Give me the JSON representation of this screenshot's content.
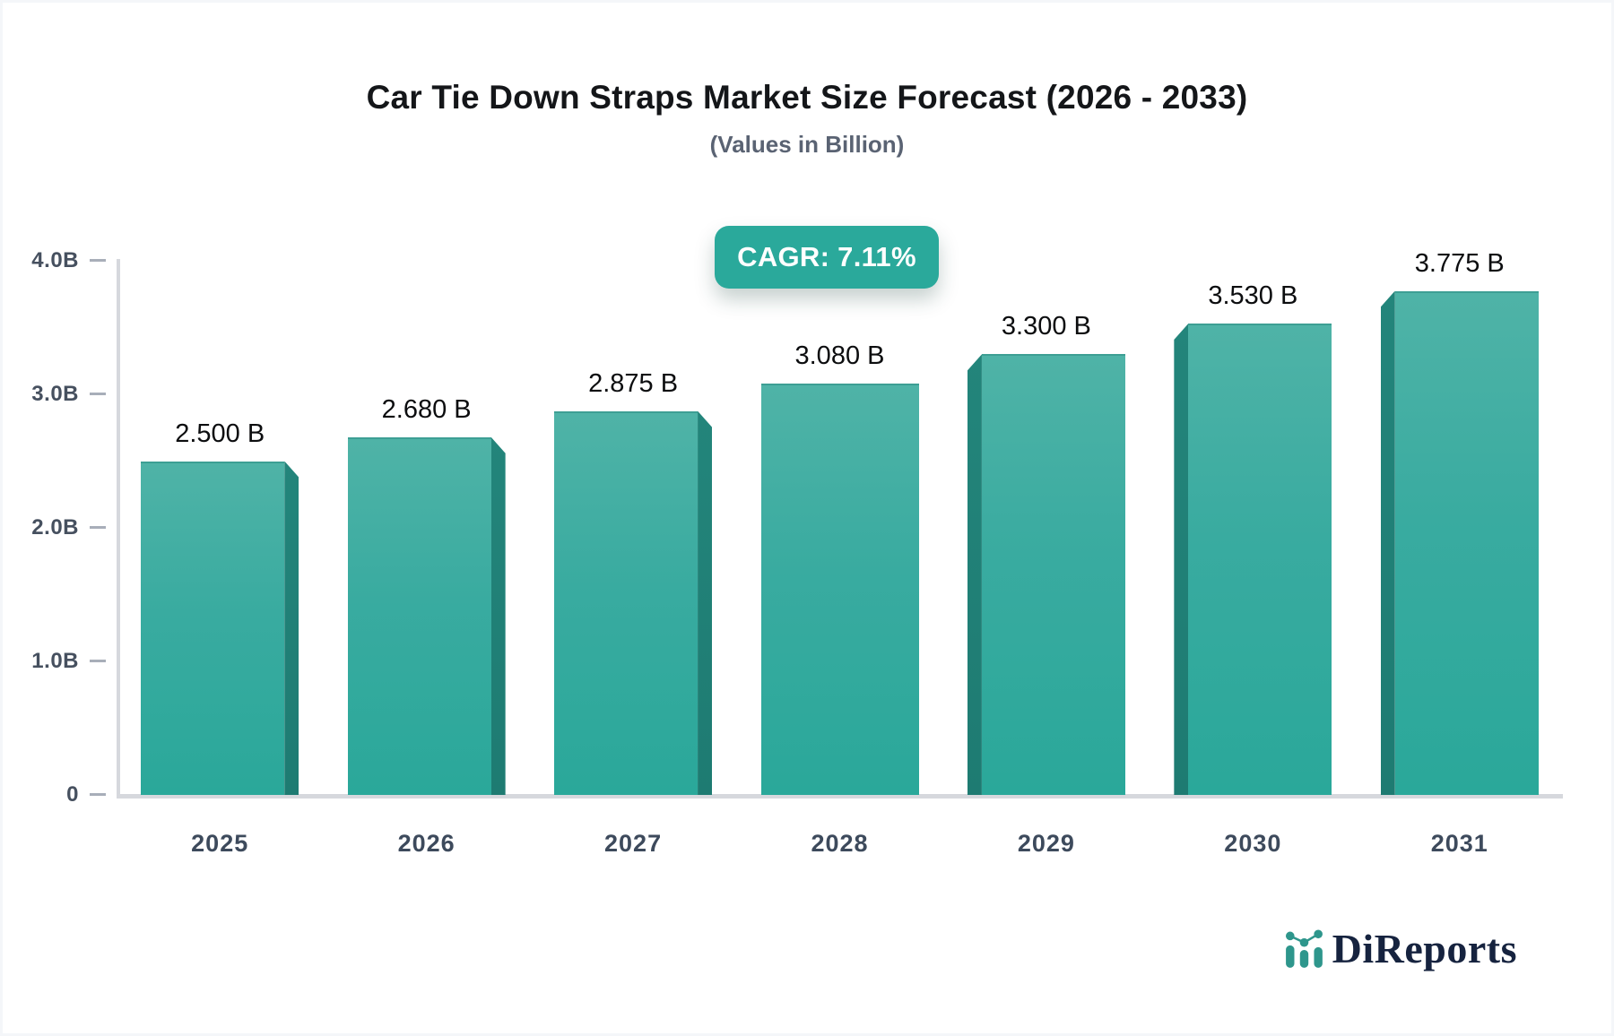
{
  "header": {
    "title": "Car Tie Down Straps Market Size Forecast (2026 - 2033)",
    "subtitle": "(Values in Billion)"
  },
  "badge": {
    "label": "CAGR: 7.11%"
  },
  "chart_data": {
    "type": "bar",
    "title": "Car Tie Down Straps Market Size Forecast (2026 - 2033)",
    "subtitle": "(Values in Billion)",
    "cagr": "CAGR: 7.11%",
    "categories": [
      "2025",
      "2026",
      "2027",
      "2028",
      "2029",
      "2030",
      "2031"
    ],
    "values": [
      2.5,
      2.68,
      2.875,
      3.08,
      3.3,
      3.53,
      3.775
    ],
    "value_labels": [
      "2.500 B",
      "2.680 B",
      "2.875 B",
      "3.080 B",
      "3.300 B",
      "3.530 B",
      "3.775 B"
    ],
    "y_ticks": [
      "0",
      "1.0B",
      "2.0B",
      "3.0B",
      "4.0B"
    ],
    "ylim": [
      0,
      4
    ],
    "xlabel": "",
    "ylabel": "",
    "grid": false,
    "legend": false,
    "colors": {
      "bar_top": "#4fb3a7",
      "bar_bottom": "#2aa89a",
      "bar_side": "#1e7b72",
      "badge": "#2aa99b",
      "axis": "#d6d8dd",
      "tick": "#a8aeb9",
      "tick_label": "#46505f",
      "category_label": "#3d4a5c",
      "value_label": "#0c0d0f"
    }
  },
  "logo": {
    "text": "DiReports",
    "icon": "bar-line-chart-icon",
    "icon_color": "#2e968c",
    "text_color": "#16233f"
  }
}
